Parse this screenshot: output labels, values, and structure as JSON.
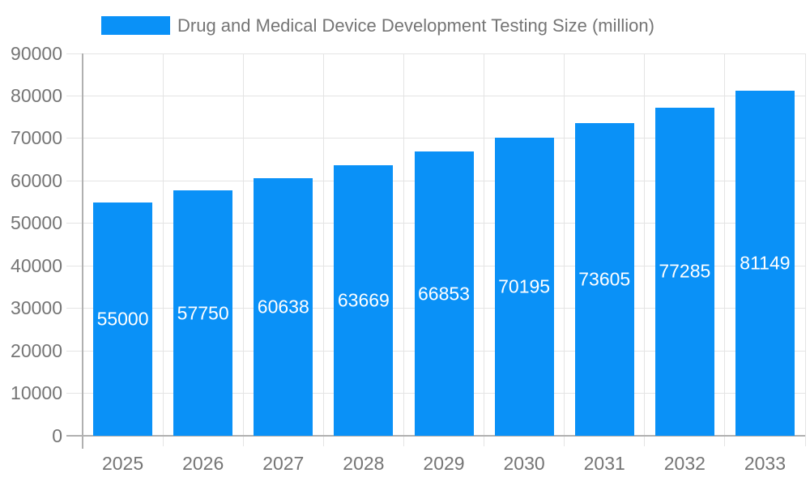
{
  "chart_data": {
    "type": "bar",
    "title": "Drug and Medical Device Development Testing Size (million)",
    "categories": [
      "2025",
      "2026",
      "2027",
      "2028",
      "2029",
      "2030",
      "2031",
      "2032",
      "2033"
    ],
    "values": [
      55000,
      57750,
      60638,
      63669,
      66853,
      70195,
      73605,
      77285,
      81149
    ],
    "series_name": "Drug and Medical Device Development Testing Size (million)",
    "xlabel": "",
    "ylabel": "",
    "ylim": [
      0,
      90000
    ],
    "ytick_step": 10000,
    "yticks": [
      0,
      10000,
      20000,
      30000,
      40000,
      50000,
      60000,
      70000,
      80000,
      90000
    ],
    "grid": "on",
    "legend_position": "top",
    "value_labels": "inside-middle"
  },
  "colors": {
    "bar": "#0a91f7",
    "axis": "#b0b0b0",
    "grid": "#e4e4e4",
    "tick_text": "#757575",
    "title_text": "#757575",
    "value_label_text": "#ffffff",
    "background": "#ffffff"
  }
}
